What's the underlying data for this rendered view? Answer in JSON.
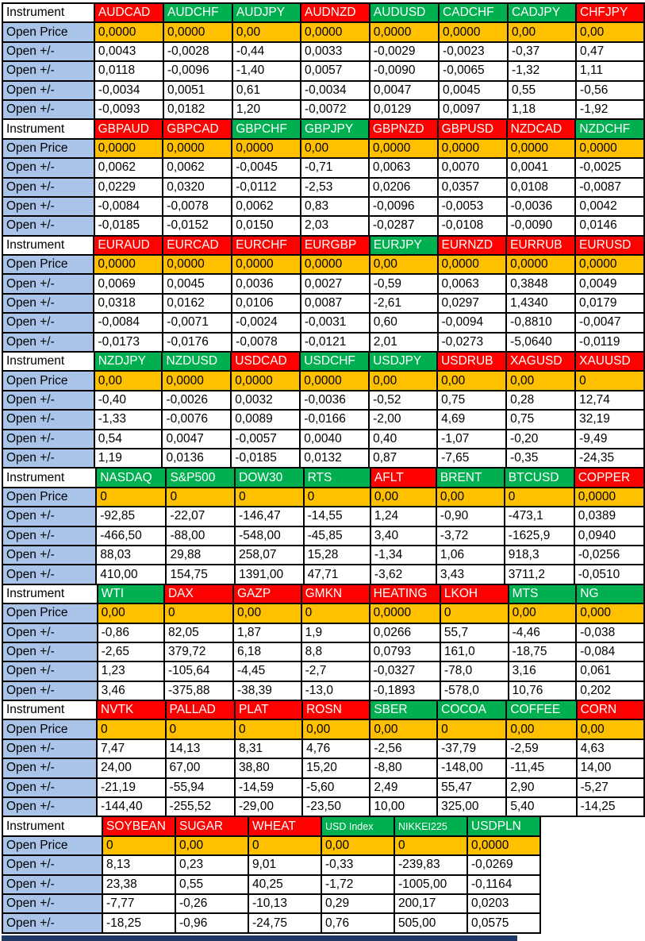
{
  "row_labels": {
    "instrument": "Instrument",
    "open_price": "Open Price",
    "open_change": "Open +/-"
  },
  "colors": {
    "red": "#FF0000",
    "green": "#00B050",
    "price_orange": "#FFC000",
    "label_blue": "#A9C4E8",
    "partial_row_navy": "#1F3864"
  },
  "blocks": [
    {
      "instruments": [
        {
          "name": "AUDCAD",
          "color": "red",
          "open_price": "0,0000",
          "changes": [
            "0,0043",
            "0,0118",
            "-0,0034",
            "-0,0093"
          ]
        },
        {
          "name": "AUDCHF",
          "color": "green",
          "open_price": "0,0000",
          "changes": [
            "-0,0028",
            "-0,0096",
            "0,0051",
            "0,0182"
          ]
        },
        {
          "name": "AUDJPY",
          "color": "green",
          "open_price": "0,00",
          "changes": [
            "-0,44",
            "-1,40",
            "0,61",
            "1,20"
          ]
        },
        {
          "name": "AUDNZD",
          "color": "red",
          "open_price": "0,0000",
          "changes": [
            "0,0033",
            "0,0057",
            "-0,0034",
            "-0,0072"
          ]
        },
        {
          "name": "AUDUSD",
          "color": "green",
          "open_price": "0,0000",
          "changes": [
            "-0,0029",
            "-0,0090",
            "0,0047",
            "0,0129"
          ]
        },
        {
          "name": "CADCHF",
          "color": "green",
          "open_price": "0,0000",
          "changes": [
            "-0,0023",
            "-0,0065",
            "0,0045",
            "0,0097"
          ]
        },
        {
          "name": "CADJPY",
          "color": "green",
          "open_price": "0,00",
          "changes": [
            "-0,37",
            "-1,32",
            "0,55",
            "1,18"
          ]
        },
        {
          "name": "CHFJPY",
          "color": "red",
          "open_price": "0,00",
          "changes": [
            "0,47",
            "1,11",
            "-0,56",
            "-1,92"
          ]
        }
      ]
    },
    {
      "instruments": [
        {
          "name": "GBPAUD",
          "color": "red",
          "open_price": "0,0000",
          "changes": [
            "0,0062",
            "0,0229",
            "-0,0084",
            "-0,0185"
          ]
        },
        {
          "name": "GBPCAD",
          "color": "red",
          "open_price": "0,0000",
          "changes": [
            "0,0062",
            "0,0320",
            "-0,0078",
            "-0,0152"
          ]
        },
        {
          "name": "GBPCHF",
          "color": "green",
          "open_price": "0,0000",
          "changes": [
            "-0,0045",
            "-0,0112",
            "0,0062",
            "0,0150"
          ]
        },
        {
          "name": "GBPJPY",
          "color": "green",
          "open_price": "0,00",
          "changes": [
            "-0,71",
            "-2,53",
            "0,83",
            "2,03"
          ]
        },
        {
          "name": "GBPNZD",
          "color": "red",
          "open_price": "0,0000",
          "changes": [
            "0,0063",
            "0,0206",
            "-0,0096",
            "-0,0287"
          ]
        },
        {
          "name": "GBPUSD",
          "color": "red",
          "open_price": "0,0000",
          "changes": [
            "0,0070",
            "0,0357",
            "-0,0053",
            "-0,0108"
          ]
        },
        {
          "name": "NZDCAD",
          "color": "red",
          "open_price": "0,0000",
          "changes": [
            "0,0041",
            "0,0108",
            "-0,0036",
            "-0,0090"
          ]
        },
        {
          "name": "NZDCHF",
          "color": "green",
          "open_price": "0,0000",
          "changes": [
            "-0,0025",
            "-0,0087",
            "0,0042",
            "0,0146"
          ]
        }
      ]
    },
    {
      "instruments": [
        {
          "name": "EURAUD",
          "color": "red",
          "open_price": "0,0000",
          "changes": [
            "0,0069",
            "0,0318",
            "-0,0084",
            "-0,0173"
          ]
        },
        {
          "name": "EURCAD",
          "color": "red",
          "open_price": "0,0000",
          "changes": [
            "0,0045",
            "0,0162",
            "-0,0071",
            "-0,0176"
          ]
        },
        {
          "name": "EURCHF",
          "color": "red",
          "open_price": "0,0000",
          "changes": [
            "0,0036",
            "0,0106",
            "-0,0024",
            "-0,0078"
          ]
        },
        {
          "name": "EURGBP",
          "color": "red",
          "open_price": "0,0000",
          "changes": [
            "0,0027",
            "0,0087",
            "-0,0031",
            "-0,0121"
          ]
        },
        {
          "name": "EURJPY",
          "color": "green",
          "open_price": "0,00",
          "changes": [
            "-0,59",
            "-2,61",
            "0,60",
            "2,01"
          ]
        },
        {
          "name": "EURNZD",
          "color": "red",
          "open_price": "0,0000",
          "changes": [
            "0,0063",
            "0,0297",
            "-0,0094",
            "-0,0273"
          ]
        },
        {
          "name": "EURRUB",
          "color": "red",
          "open_price": "0,0000",
          "changes": [
            "0,3848",
            "1,4340",
            "-0,8810",
            "-5,0640"
          ]
        },
        {
          "name": "EURUSD",
          "color": "red",
          "open_price": "0,0000",
          "changes": [
            "0,0049",
            "0,0179",
            "-0,0047",
            "-0,0119"
          ]
        }
      ]
    },
    {
      "instruments": [
        {
          "name": "NZDJPY",
          "color": "green",
          "open_price": "0,00",
          "changes": [
            "-0,40",
            "-1,33",
            "0,54",
            "1,19"
          ]
        },
        {
          "name": "NZDUSD",
          "color": "green",
          "open_price": "0,0000",
          "changes": [
            "-0,0026",
            "-0,0076",
            "0,0047",
            "0,0136"
          ]
        },
        {
          "name": "USDCAD",
          "color": "red",
          "open_price": "0,0000",
          "changes": [
            "0,0032",
            "0,0089",
            "-0,0057",
            "-0,0185"
          ]
        },
        {
          "name": "USDCHF",
          "color": "green",
          "open_price": "0,0000",
          "changes": [
            "-0,0036",
            "-0,0166",
            "0,0040",
            "0,0132"
          ]
        },
        {
          "name": "USDJPY",
          "color": "green",
          "open_price": "0,00",
          "changes": [
            "-0,52",
            "-2,00",
            "0,40",
            "0,87"
          ]
        },
        {
          "name": "USDRUB",
          "color": "red",
          "open_price": "0,00",
          "changes": [
            "0,75",
            "4,69",
            "-1,07",
            "-7,65"
          ]
        },
        {
          "name": "XAGUSD",
          "color": "red",
          "open_price": "0,00",
          "changes": [
            "0,28",
            "0,75",
            "-0,20",
            "-0,35"
          ]
        },
        {
          "name": "XAUUSD",
          "color": "red",
          "open_price": "0",
          "changes": [
            "12,74",
            "32,19",
            "-9,49",
            "-24,35"
          ]
        }
      ]
    },
    {
      "instruments": [
        {
          "name": "NASDAQ",
          "color": "green",
          "open_price": "0",
          "changes": [
            "-92,85",
            "-466,50",
            "88,03",
            "410,00"
          ]
        },
        {
          "name": "S&P500",
          "color": "green",
          "open_price": "0",
          "changes": [
            "-22,07",
            "-88,00",
            "29,88",
            "154,75"
          ]
        },
        {
          "name": "DOW30",
          "color": "green",
          "open_price": "0",
          "changes": [
            "-146,47",
            "-548,00",
            "258,07",
            "1391,00"
          ]
        },
        {
          "name": "RTS",
          "color": "green",
          "open_price": "0",
          "changes": [
            "-14,55",
            "-45,85",
            "15,28",
            "47,71"
          ]
        },
        {
          "name": "AFLT",
          "color": "red",
          "open_price": "0,00",
          "changes": [
            "1,24",
            "3,40",
            "-1,34",
            "-3,62"
          ]
        },
        {
          "name": "BRENT",
          "color": "green",
          "open_price": "0,00",
          "changes": [
            "-0,90",
            "-3,72",
            "1,06",
            "3,43"
          ]
        },
        {
          "name": "BTCUSD",
          "color": "green",
          "open_price": "0",
          "changes": [
            "-473,1",
            "-1625,9",
            "918,3",
            "3711,2"
          ]
        },
        {
          "name": "COPPER",
          "color": "red",
          "open_price": "0,0000",
          "changes": [
            "0,0389",
            "0,0940",
            "-0,0256",
            "-0,0510"
          ]
        }
      ]
    },
    {
      "instruments": [
        {
          "name": "WTI",
          "color": "green",
          "open_price": "0,00",
          "changes": [
            "-0,86",
            "-2,65",
            "1,23",
            "3,46"
          ]
        },
        {
          "name": "DAX",
          "color": "red",
          "open_price": "0",
          "changes": [
            "82,05",
            "379,72",
            "-105,64",
            "-375,88"
          ]
        },
        {
          "name": "GAZP",
          "color": "red",
          "open_price": "0,00",
          "changes": [
            "1,87",
            "6,18",
            "-4,45",
            "-38,39"
          ]
        },
        {
          "name": "GMKN",
          "color": "red",
          "open_price": "0",
          "changes": [
            "1,9",
            "8,8",
            "-2,7",
            "-13,0"
          ]
        },
        {
          "name": "HEATING",
          "color": "red",
          "open_price": "0,0000",
          "changes": [
            "0,0266",
            "0,0793",
            "-0,0327",
            "-0,1893"
          ]
        },
        {
          "name": "LKOH",
          "color": "red",
          "open_price": "0",
          "changes": [
            "55,7",
            "161,0",
            "-78,0",
            "-578,0"
          ]
        },
        {
          "name": "MTS",
          "color": "green",
          "open_price": "0,00",
          "changes": [
            "-4,46",
            "-18,75",
            "3,16",
            "10,76"
          ]
        },
        {
          "name": "NG",
          "color": "green",
          "open_price": "0,000",
          "changes": [
            "-0,038",
            "-0,084",
            "0,061",
            "0,202"
          ]
        }
      ]
    },
    {
      "instruments": [
        {
          "name": "NVTK",
          "color": "red",
          "open_price": "0",
          "changes": [
            "7,47",
            "24,00",
            "-21,19",
            "-144,40"
          ]
        },
        {
          "name": "PALLAD",
          "color": "red",
          "open_price": "0",
          "changes": [
            "14,13",
            "67,00",
            "-55,94",
            "-255,52"
          ]
        },
        {
          "name": "PLAT",
          "color": "red",
          "open_price": "0",
          "changes": [
            "8,31",
            "38,80",
            "-14,59",
            "-29,00"
          ]
        },
        {
          "name": "ROSN",
          "color": "red",
          "open_price": "0,00",
          "changes": [
            "4,76",
            "15,20",
            "-5,60",
            "-23,50"
          ]
        },
        {
          "name": "SBER",
          "color": "green",
          "open_price": "0,00",
          "changes": [
            "-2,56",
            "-8,80",
            "2,49",
            "10,00"
          ]
        },
        {
          "name": "COCOA",
          "color": "green",
          "open_price": "0",
          "changes": [
            "-37,79",
            "-148,00",
            "55,47",
            "325,00"
          ]
        },
        {
          "name": "COFFEE",
          "color": "green",
          "open_price": "0,00",
          "changes": [
            "-2,59",
            "-11,45",
            "2,90",
            "5,40"
          ]
        },
        {
          "name": "CORN",
          "color": "red",
          "open_price": "0,00",
          "changes": [
            "4,63",
            "14,00",
            "-5,27",
            "-14,25"
          ]
        }
      ]
    },
    {
      "instruments": [
        {
          "name": "SOYBEAN",
          "color": "red",
          "open_price": "0",
          "changes": [
            "8,13",
            "23,38",
            "-7,77",
            "-18,25"
          ]
        },
        {
          "name": "SUGAR",
          "color": "red",
          "open_price": "0,00",
          "changes": [
            "0,23",
            "0,55",
            "-0,26",
            "-0,96"
          ]
        },
        {
          "name": "WHEAT",
          "color": "red",
          "open_price": "0",
          "changes": [
            "9,01",
            "40,25",
            "-10,13",
            "-24,75"
          ]
        },
        {
          "name": "USD Index",
          "color": "green",
          "open_price": "0,00",
          "changes": [
            "-0,33",
            "-1,72",
            "0,29",
            "0,76"
          ]
        },
        {
          "name": "NIKKEI225",
          "color": "green",
          "open_price": "0",
          "changes": [
            "-239,83",
            "-1005,00",
            "200,17",
            "505,00"
          ]
        },
        {
          "name": "USDPLN",
          "color": "green",
          "open_price": "0,0000",
          "changes": [
            "-0,0269",
            "-0,1164",
            "0,0203",
            "0,0575"
          ]
        }
      ]
    }
  ]
}
